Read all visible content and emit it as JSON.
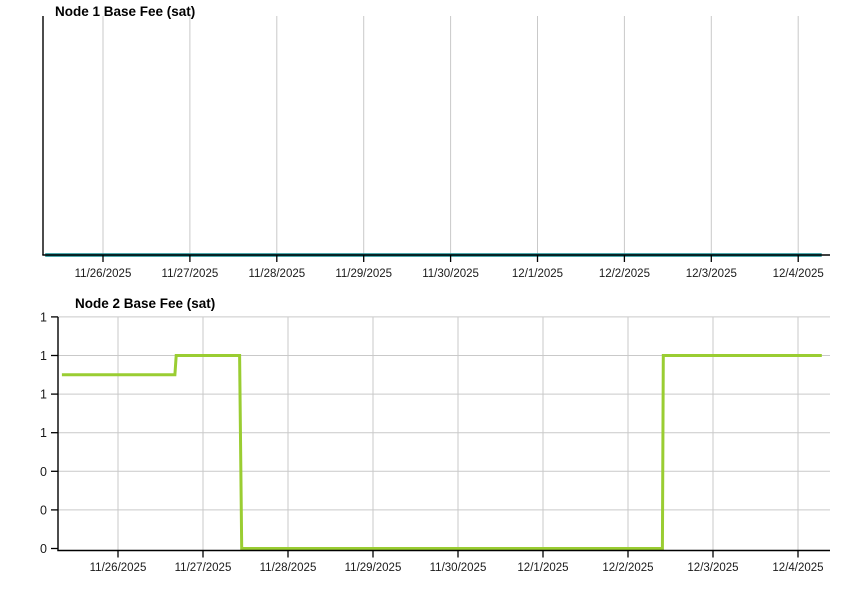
{
  "style": {
    "background": "#ffffff",
    "grid_color": "#c9c9c9",
    "axis_color": "#000000",
    "label_color": "#1a1a1a",
    "node1_line_color": "#148b90",
    "node2_line_color": "#9acd32"
  },
  "chart_data": [
    {
      "id": "node1",
      "type": "line",
      "title": "Node 1 Base Fee (sat)",
      "xlabel": "",
      "ylabel": "",
      "grid": "vertical-only",
      "legend": "none",
      "x_axis": {
        "unit": "days",
        "origin_label": "11/26/2025"
      },
      "ylim": [
        0,
        1
      ],
      "x_ticks": [
        {
          "day": 0,
          "label": "11/26/2025"
        },
        {
          "day": 1,
          "label": "11/27/2025"
        },
        {
          "day": 2,
          "label": "11/28/2025"
        },
        {
          "day": 3,
          "label": "11/29/2025"
        },
        {
          "day": 4,
          "label": "11/30/2025"
        },
        {
          "day": 5,
          "label": "12/1/2025"
        },
        {
          "day": 6,
          "label": "12/2/2025"
        },
        {
          "day": 7,
          "label": "12/3/2025"
        },
        {
          "day": 8,
          "label": "12/4/2025"
        }
      ],
      "y_ticks": [],
      "series": [
        {
          "name": "Node 1 Base Fee",
          "color": "#148b90",
          "width": 3.6,
          "points": [
            [
              -0.665,
              0
            ],
            [
              8.27,
              0
            ]
          ]
        }
      ]
    },
    {
      "id": "node2",
      "type": "line",
      "title": "Node 2 Base Fee (sat)",
      "xlabel": "",
      "ylabel": "",
      "grid": "both",
      "legend": "none",
      "x_axis": {
        "unit": "days",
        "origin_label": "11/26/2025"
      },
      "ylim": [
        0,
        1.2
      ],
      "x_ticks": [
        {
          "day": 0,
          "label": "11/26/2025"
        },
        {
          "day": 1,
          "label": "11/27/2025"
        },
        {
          "day": 2,
          "label": "11/28/2025"
        },
        {
          "day": 3,
          "label": "11/29/2025"
        },
        {
          "day": 4,
          "label": "11/30/2025"
        },
        {
          "day": 5,
          "label": "12/1/2025"
        },
        {
          "day": 6,
          "label": "12/2/2025"
        },
        {
          "day": 7,
          "label": "12/3/2025"
        },
        {
          "day": 8,
          "label": "12/4/2025"
        }
      ],
      "y_ticks": [
        {
          "value": 1.2,
          "label": "1"
        },
        {
          "value": 1.0,
          "label": "1"
        },
        {
          "value": 0.8,
          "label": "1"
        },
        {
          "value": 0.6,
          "label": "1"
        },
        {
          "value": 0.4,
          "label": "0"
        },
        {
          "value": 0.2,
          "label": "0"
        },
        {
          "value": 0.0,
          "label": "0"
        }
      ],
      "series": [
        {
          "name": "Node 2 Base Fee",
          "color": "#9acd32",
          "width": 3,
          "points": [
            [
              -0.66,
              0.9
            ],
            [
              0.67,
              0.9
            ],
            [
              0.685,
              1
            ],
            [
              1.43,
              1
            ],
            [
              1.455,
              0
            ],
            [
              6.405,
              0
            ],
            [
              6.415,
              1
            ],
            [
              8.28,
              1
            ]
          ]
        }
      ]
    }
  ]
}
